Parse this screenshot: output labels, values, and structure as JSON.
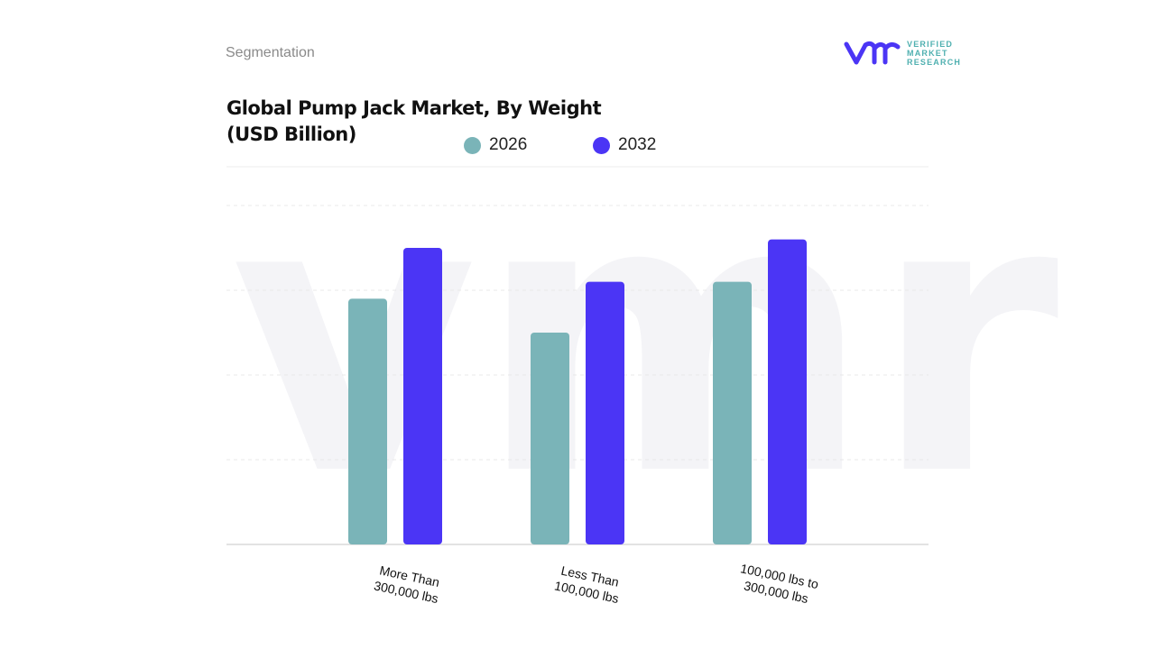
{
  "header": {
    "section": "Segmentation"
  },
  "logo": {
    "text": "VERIFIED MARKET RESEARCH",
    "line1": "VERIFIED",
    "line2": "MARKET",
    "line3": "RESEARCH"
  },
  "colors": {
    "s2026": "#7ab4b8",
    "s2032": "#4b35f5",
    "grid": "#e6e6e6"
  },
  "chart_data": {
    "type": "bar",
    "title": "Global Pump Jack Market, By Weight (USD Billion)",
    "title_line1": "Global Pump Jack Market, By Weight",
    "title_line2": "(USD Billion)",
    "categories": [
      "More Than 300,000 lbs",
      "Less Than 100,000 lbs",
      "100,000 lbs to 300,000 lbs"
    ],
    "category_lines": [
      [
        "More Than",
        "300,000 lbs"
      ],
      [
        "Less Than",
        "100,000 lbs"
      ],
      [
        "100,000 lbs to",
        "300,000 lbs"
      ]
    ],
    "series": [
      {
        "name": "2026",
        "values": [
          2.9,
          2.5,
          3.1
        ]
      },
      {
        "name": "2032",
        "values": [
          3.5,
          3.1,
          3.6
        ]
      }
    ],
    "ylim": [
      0,
      4
    ],
    "grid": true,
    "legend": "top",
    "xlabel": "",
    "ylabel": ""
  }
}
